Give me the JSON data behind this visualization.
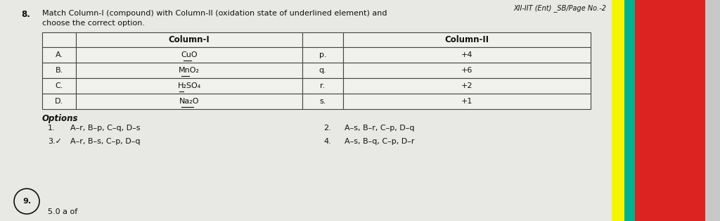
{
  "header_text": "XII-IIT (Ent) _SB/Page No.-2",
  "question_number": "8.",
  "question_text1": "Match Column-I (compound) with Column-II (oxidation state of underlined element) and",
  "question_text2": "choose the correct option.",
  "col1_header": "Column-I",
  "col2_header": "Column-II",
  "rows": [
    {
      "label": "A.",
      "compound": "CuO",
      "underline": "Cu",
      "key": "p.",
      "value": "+4"
    },
    {
      "label": "B.",
      "compound": "MnO₂",
      "underline": "Mn",
      "key": "q.",
      "value": "+6"
    },
    {
      "label": "C.",
      "compound": "H₂SO₄",
      "underline": "S",
      "key": "r.",
      "value": "+2"
    },
    {
      "label": "D.",
      "compound": "Na₂O",
      "underline": "Na₂",
      "key": "s.",
      "value": "+1"
    }
  ],
  "options_label": "Options",
  "options": [
    {
      "num": "1.",
      "text": "A–r, B–p, C–q, D–s",
      "col": 0
    },
    {
      "num": "2.",
      "text": "A–s, B–r, C–p, D–q",
      "col": 1
    },
    {
      "num": "3.✓",
      "text": "A–r, B–s, C–p, D–q",
      "col": 0
    },
    {
      "num": "4.",
      "text": "A–s, B–q, C–p, D–r",
      "col": 1
    }
  ],
  "bg_color": "#c8c8c8",
  "paper_color": "#e8e8e4",
  "table_bg": "#f0f0ec",
  "border_color": "#444444",
  "text_color": "#111111",
  "binding_colors": [
    "#f5f500",
    "#00b090",
    "#dd2222"
  ],
  "circle_label": "9."
}
